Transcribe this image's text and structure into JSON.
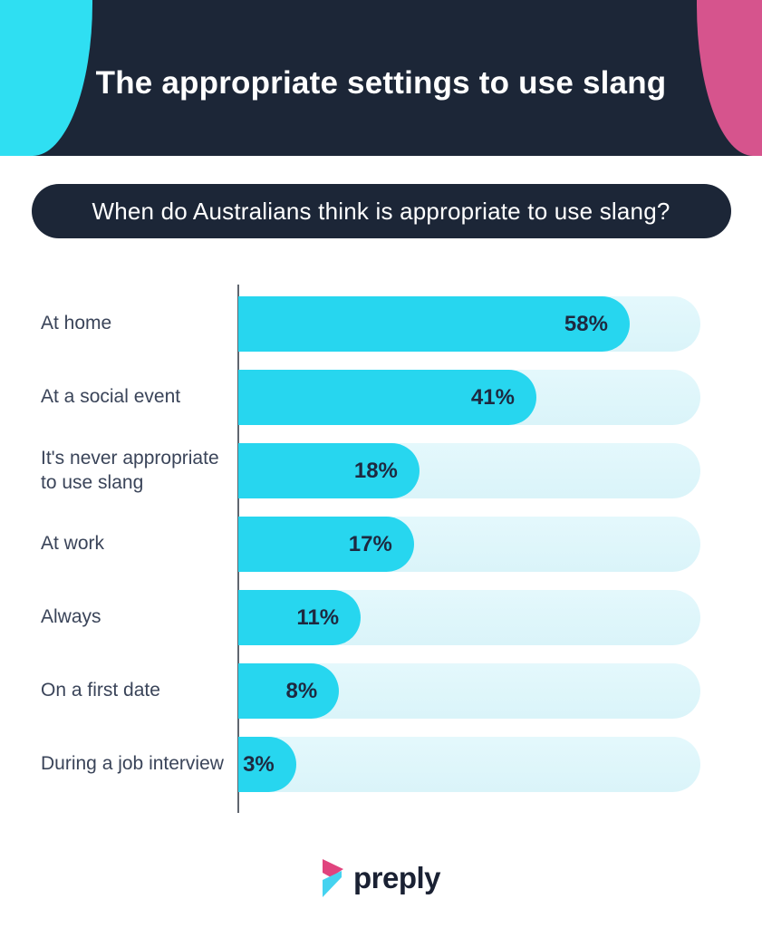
{
  "header": {
    "title": "The appropriate settings to use slang"
  },
  "subtitle": "When do Australians think is appropriate to use slang?",
  "chart_data": {
    "type": "bar",
    "orientation": "horizontal",
    "title": "When do Australians think is appropriate to use slang?",
    "xlabel": "",
    "ylabel": "",
    "xlim": [
      0,
      100
    ],
    "grid": false,
    "legend": false,
    "categories": [
      "At home",
      "At a social event",
      "It's never appropriate to use slang",
      "At work",
      "Always",
      "On a first date",
      "During a job interview"
    ],
    "values": [
      58,
      41,
      18,
      17,
      11,
      8,
      3
    ],
    "value_labels": [
      "58%",
      "41%",
      "18%",
      "17%",
      "11%",
      "8%",
      "3%"
    ],
    "bar_display_pct": [
      84.7,
      64.5,
      39.2,
      38.0,
      26.5,
      21.8,
      12.5
    ],
    "bar_color": "#27d6ef",
    "track_color": "#ddf5fa",
    "value_label_color": "#1e2940",
    "category_label_color": "#3a4459"
  },
  "footer": {
    "logo_text": "preply"
  },
  "colors": {
    "navy": "#1c2637",
    "corner_cyan": "#2fdff2",
    "corner_pink": "#d6548d",
    "logo_pink": "#e0447e",
    "logo_cyan": "#45d3f0",
    "background": "#ffffff"
  }
}
